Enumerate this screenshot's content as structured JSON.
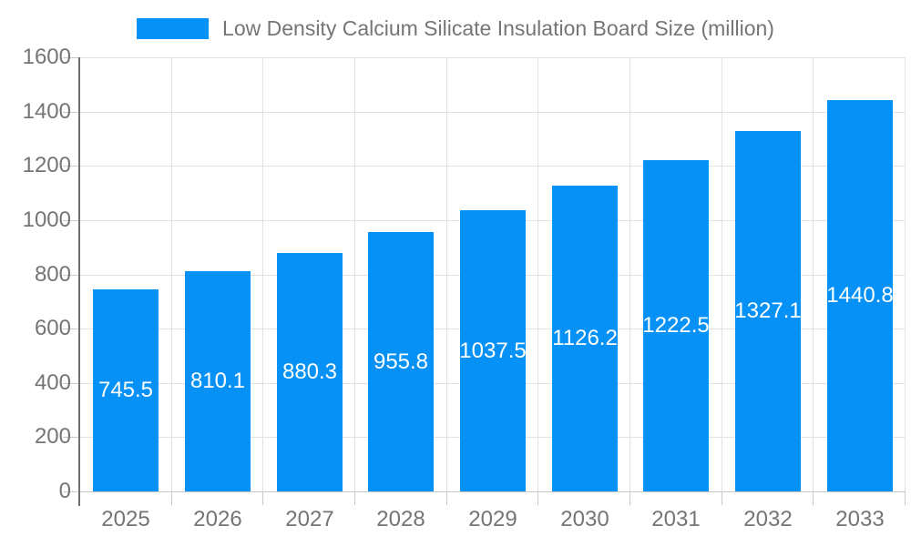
{
  "chart_data": {
    "type": "bar",
    "title": "Low Density Calcium Silicate Insulation Board Size (million)",
    "legend_entries": [
      "Low Density Calcium Silicate Insulation Board Size (million)"
    ],
    "legend_position": "top-center",
    "categories": [
      "2025",
      "2026",
      "2027",
      "2028",
      "2029",
      "2030",
      "2031",
      "2032",
      "2033"
    ],
    "values": [
      745.5,
      810.1,
      880.3,
      955.8,
      1037.5,
      1126.2,
      1222.5,
      1327.1,
      1440.8
    ],
    "value_labels": [
      "745.5",
      "810.1",
      "880.3",
      "955.8",
      "1037.5",
      "1126.2",
      "1222.5",
      "1327.1",
      "1440.8"
    ],
    "xlabel": "",
    "ylabel": "",
    "ylim": [
      0,
      1600
    ],
    "ytick_step": 200,
    "yticks": [
      "0",
      "200",
      "400",
      "600",
      "800",
      "1000",
      "1200",
      "1400",
      "1600"
    ],
    "grid": true,
    "colors": {
      "bar": "#0591F5",
      "axis_label": "#757575",
      "grid_line": "#E2E2E2",
      "zero_line": "#C4C4C4",
      "tick_line": "#C9C9C9",
      "axis_line": "#6E6E6E",
      "value_label": "#FFFFFF",
      "background": "#FFFFFF"
    }
  }
}
